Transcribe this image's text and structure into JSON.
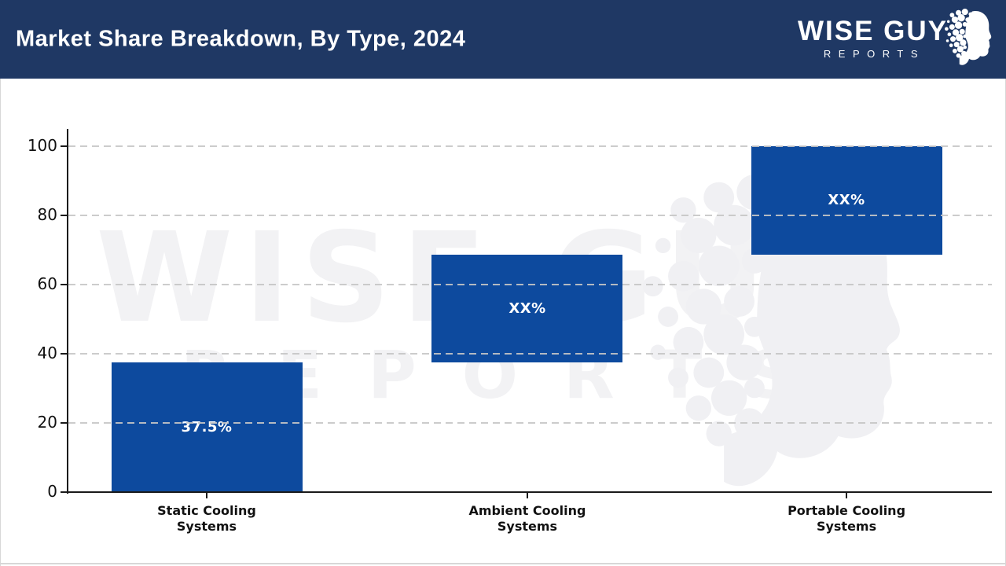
{
  "header": {
    "title": "Market Share Breakdown, By Type, 2024",
    "bg_color": "#1f3864",
    "logo": {
      "name": "WISE GUY",
      "tagline": "REPORTS"
    }
  },
  "watermark": {
    "brand": "WISE GUY",
    "tagline": "REPORTS"
  },
  "chart_data": {
    "type": "bar",
    "subtype": "floating-cumulative-segments",
    "title": "Market Share Breakdown, By Type, 2024",
    "categories": [
      {
        "line1": "Static Cooling",
        "line2": "Systems"
      },
      {
        "line1": "Ambient Cooling",
        "line2": "Systems"
      },
      {
        "line1": "Portable Cooling",
        "line2": "Systems"
      }
    ],
    "series": [
      {
        "name": "Market Share (%)",
        "segments": [
          {
            "category": "Static Cooling Systems",
            "start": 0,
            "end": 37.5,
            "label": "37.5%"
          },
          {
            "category": "Ambient Cooling Systems",
            "start": 37.5,
            "end": 68.75,
            "label": "XX%"
          },
          {
            "category": "Portable Cooling Systems",
            "start": 68.75,
            "end": 100,
            "label": "XX%"
          }
        ]
      }
    ],
    "xlabel": "",
    "ylabel": "",
    "yticks": [
      0,
      20,
      40,
      60,
      80,
      100
    ],
    "ylim": [
      0,
      105
    ],
    "grid": {
      "horizontal": true,
      "style": "dashed",
      "color": "#c6c6c6",
      "drawn_over_bars": true
    },
    "legend": "none",
    "colors": {
      "bar": "#0d4a9e",
      "bar_label": "#ffffff",
      "axis": "#1a1a1a",
      "tick_label": "#111111",
      "header_bg": "#1f3864",
      "watermark": "#f2f2f4"
    }
  }
}
